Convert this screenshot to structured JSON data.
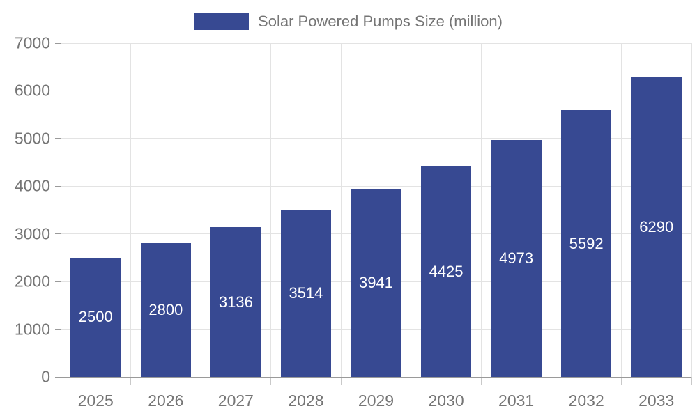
{
  "chart_data": {
    "type": "bar",
    "title": "",
    "series_name": "Solar Powered Pumps Size (million)",
    "categories": [
      "2025",
      "2026",
      "2027",
      "2028",
      "2029",
      "2030",
      "2031",
      "2032",
      "2033"
    ],
    "values": [
      2500,
      2800,
      3136,
      3514,
      3941,
      4425,
      4973,
      5592,
      6290
    ],
    "xlabel": "",
    "ylabel": "",
    "ylim": [
      0,
      7000
    ],
    "ytick_step": 1000,
    "grid": "on",
    "legend_position": "top-center",
    "bar_color": "#374992",
    "bar_label_color": "#ffffff",
    "axis_text_color": "#757575",
    "grid_color": "#e3e3e3",
    "axis_line_color": "#9a9a9a",
    "x_tick_color": "#c9c9c9",
    "y_tick_color": "#9a9a9a"
  }
}
